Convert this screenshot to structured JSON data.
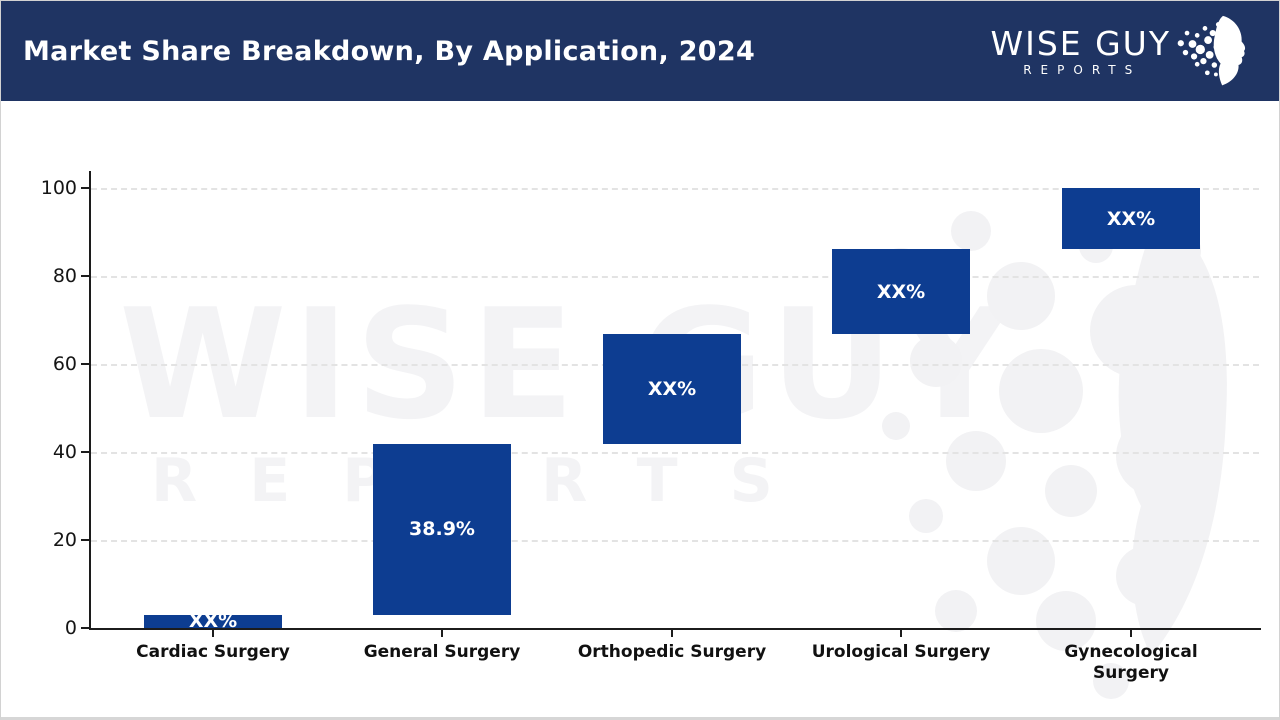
{
  "header": {
    "title": "Market Share Breakdown, By Application, 2024",
    "logo": {
      "line1": "WISE GUY",
      "line2": "REPORTS"
    }
  },
  "watermark": {
    "line1": "WISE GUY",
    "line2": "REPORTS"
  },
  "colors": {
    "header_bg": "#1f3463",
    "bar": "#0d3d91",
    "bar_label": "#ffffff",
    "axis": "#1c1c1c",
    "gridline": "#e3e3e3",
    "watermark": "#f3f3f5",
    "title_text": "#ffffff"
  },
  "chart_data": {
    "type": "bar",
    "subtype": "waterfall",
    "title": "Market Share Breakdown, By Application, 2024",
    "categories": [
      "Cardiac Surgery",
      "General Surgery",
      "Orthopedic Surgery",
      "Urological Surgery",
      "Gynecological\nSurgery"
    ],
    "segments": [
      {
        "category": "Cardiac Surgery",
        "start": 0,
        "end": 3,
        "value_label": "XX%"
      },
      {
        "category": "General Surgery",
        "start": 3,
        "end": 41.9,
        "value_label": "38.9%"
      },
      {
        "category": "Orthopedic Surgery",
        "start": 41.9,
        "end": 66.8,
        "value_label": "XX%"
      },
      {
        "category": "Urological Surgery",
        "start": 66.8,
        "end": 86.1,
        "value_label": "XX%"
      },
      {
        "category": "Gynecological Surgery",
        "start": 86.1,
        "end": 100,
        "value_label": "XX%"
      }
    ],
    "xlabel": "",
    "ylabel": "",
    "ylim": [
      0,
      100
    ],
    "yticks": [
      0,
      20,
      40,
      60,
      80,
      100
    ],
    "grid": "horizontal dashed",
    "legend": "none"
  }
}
